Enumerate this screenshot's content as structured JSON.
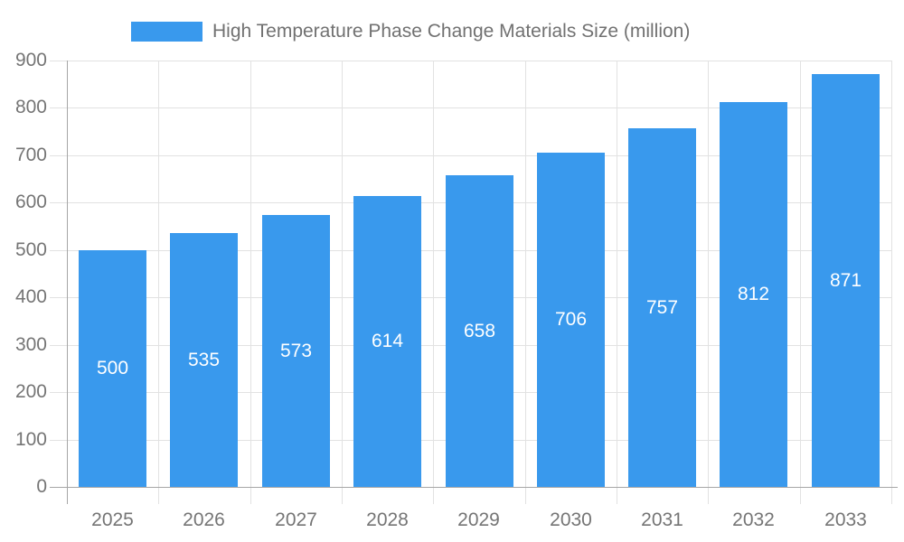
{
  "chart_data": {
    "type": "bar",
    "title": "High Temperature Phase Change Materials Size (million)",
    "categories": [
      "2025",
      "2026",
      "2027",
      "2028",
      "2029",
      "2030",
      "2031",
      "2032",
      "2033"
    ],
    "values": [
      500,
      535,
      573,
      614,
      658,
      706,
      757,
      812,
      871
    ],
    "xlabel": "",
    "ylabel": "",
    "ylim": [
      0,
      900
    ],
    "ytick_step": 100,
    "yticks": [
      0,
      100,
      200,
      300,
      400,
      500,
      600,
      700,
      800,
      900
    ],
    "grid": true,
    "legend_position": "top",
    "value_label_position": "inside-center"
  },
  "legend": {
    "swatch": "series-color-swatch"
  },
  "colors": {
    "bar": "#3999ED",
    "axis": "#a6a6a6",
    "grid": "#e2e2e2",
    "tick_text": "#757575",
    "title_text": "#717171",
    "value_label": "#ffffff",
    "background": "#ffffff"
  }
}
